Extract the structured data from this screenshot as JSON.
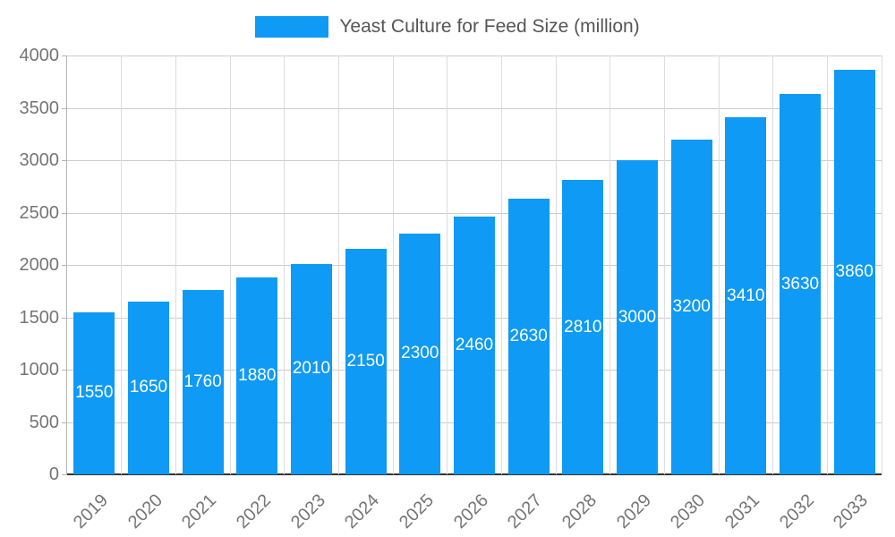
{
  "legend": {
    "title": "Yeast Culture for Feed Size (million)"
  },
  "chart_data": {
    "type": "bar",
    "title": "Yeast Culture for Feed Size (million)",
    "categories": [
      "2019",
      "2020",
      "2021",
      "2022",
      "2023",
      "2024",
      "2025",
      "2026",
      "2027",
      "2028",
      "2029",
      "2030",
      "2031",
      "2032",
      "2033"
    ],
    "values": [
      1550,
      1650,
      1760,
      1880,
      2010,
      2150,
      2300,
      2460,
      2630,
      2810,
      3000,
      3200,
      3410,
      3630,
      3860
    ],
    "xlabel": "",
    "ylabel": "",
    "ylim": [
      0,
      4000
    ],
    "ytick_step": 500,
    "grid": "on",
    "legend_position": "top-center",
    "bar_color": "#0f9af5",
    "value_label_color": "#ffffff",
    "axis_label_color": "#757575",
    "grid_color": "#cccccc",
    "value_labels_placement": "inside-center"
  }
}
